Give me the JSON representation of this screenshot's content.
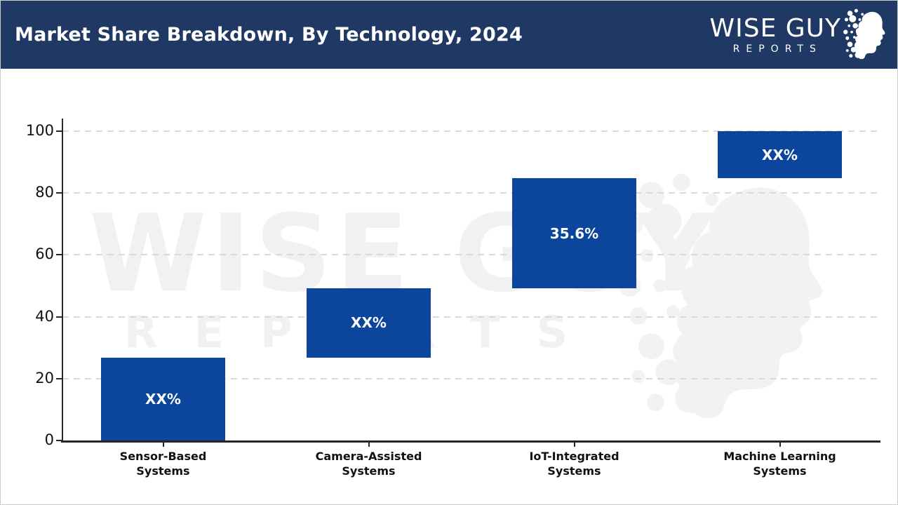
{
  "header": {
    "title": "Market Share Breakdown, By Technology, 2024",
    "brand": {
      "name": "WISE GUY",
      "tagline": "REPORTS"
    }
  },
  "watermark": {
    "line1": "WISE GUY",
    "line2": "REPORTS"
  },
  "chart_data": {
    "type": "bar",
    "variant": "waterfall",
    "title": "Market Share Breakdown, By Technology, 2024",
    "unit": "percent market share",
    "categories": [
      "Sensor-Based Systems",
      "Camera-Assisted Systems",
      "IoT-Integrated Systems",
      "Machine Learning Systems"
    ],
    "category_lines": [
      [
        "Sensor-Based",
        "Systems"
      ],
      [
        "Camera-Assisted",
        "Systems"
      ],
      [
        "IoT-Integrated",
        "Systems"
      ],
      [
        "Machine Learning",
        "Systems"
      ]
    ],
    "segments": [
      {
        "label": "XX%",
        "start": 0,
        "end": 26.8
      },
      {
        "label": "XX%",
        "start": 26.8,
        "end": 49.2
      },
      {
        "label": "35.6%",
        "start": 49.2,
        "end": 84.8
      },
      {
        "label": "XX%",
        "start": 84.8,
        "end": 100
      }
    ],
    "yticks": [
      0,
      20,
      40,
      60,
      80,
      100
    ],
    "ylim": [
      0,
      100
    ],
    "grid": {
      "axis": "y",
      "style": "dashed",
      "color": "#d9d9d9"
    },
    "legend": "none",
    "colors": {
      "bar": "#0b459c",
      "header_bg": "#203864",
      "axis": "#262626",
      "watermark": "#f1f1f3",
      "bar_label_text": "#ffffff"
    }
  }
}
